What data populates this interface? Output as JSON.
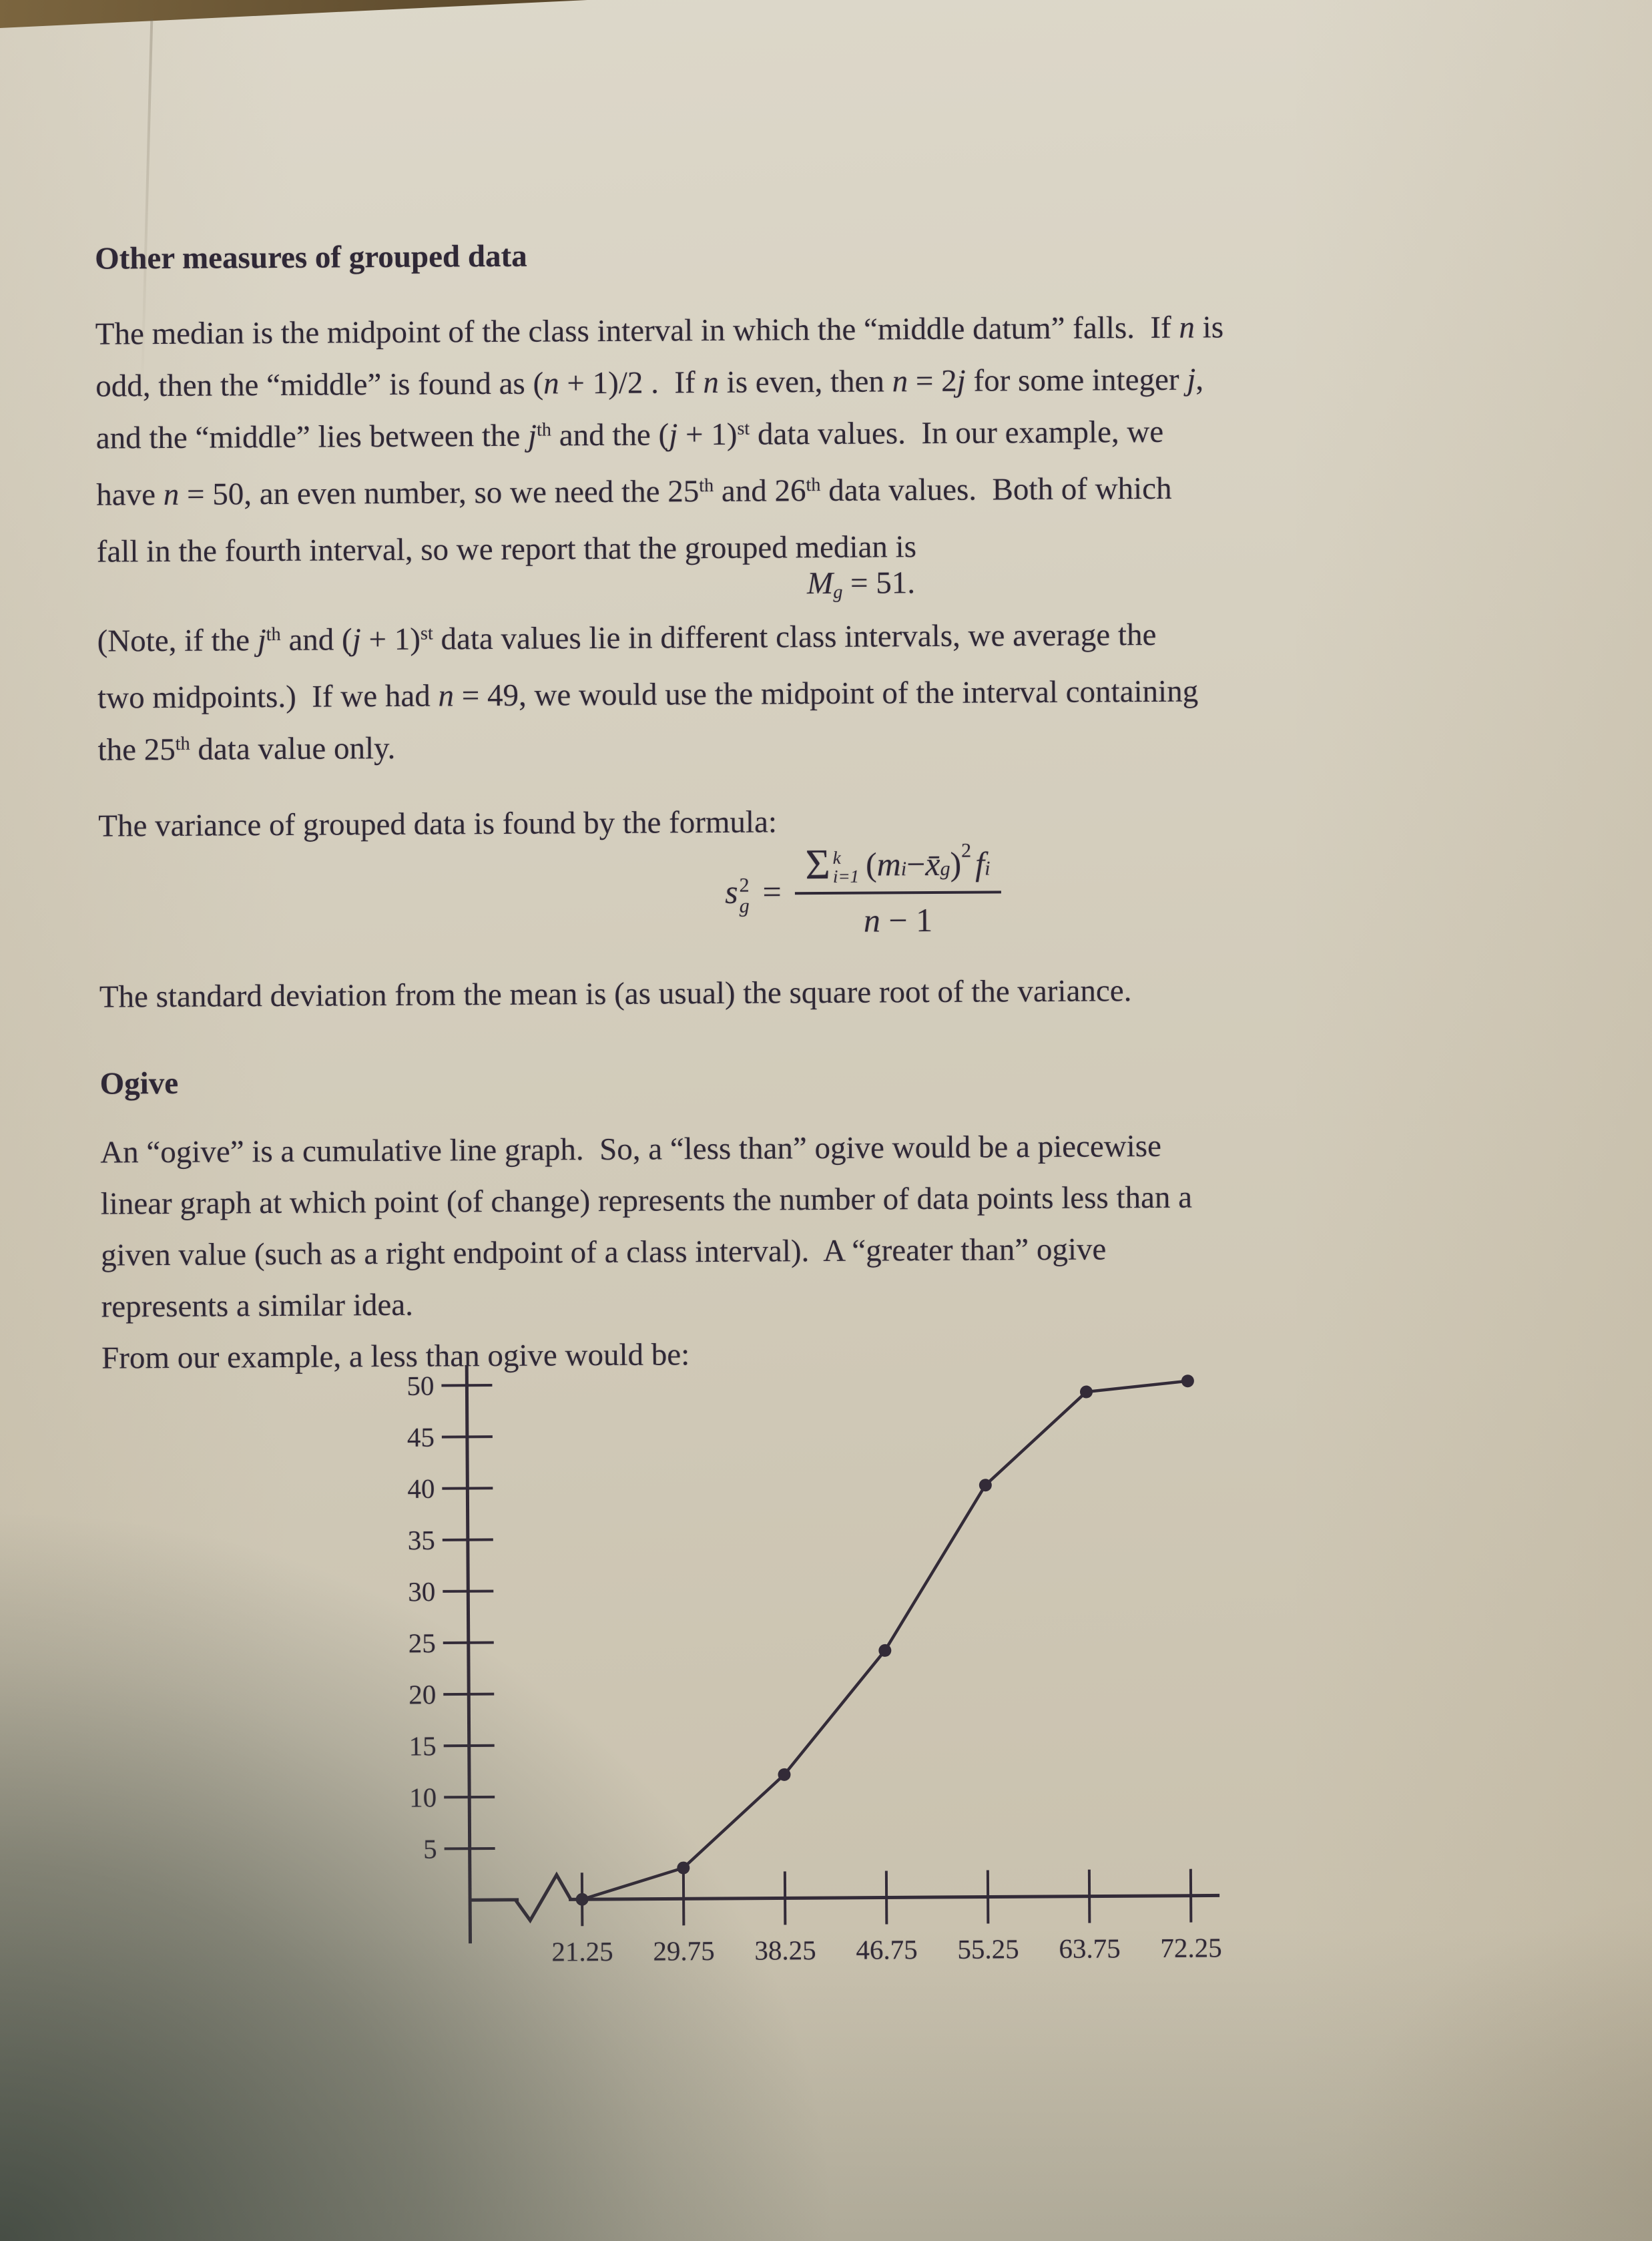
{
  "colors": {
    "paper": "#d5cfbf",
    "ink": "#2f2836",
    "wood": "#54422a",
    "shadow": "#5f665e"
  },
  "heading1": "Other measures of grouped data",
  "paragraph1": {
    "lines": [
      [
        [
          "",
          "The median is the midpoint of the class interval in which the “middle datum” falls.  If "
        ],
        [
          "i",
          "n"
        ],
        [
          "",
          " is"
        ]
      ],
      [
        [
          "",
          "odd, then the “middle” is found as ("
        ],
        [
          "i",
          "n"
        ],
        [
          "",
          " + 1)/2 .  If "
        ],
        [
          "i",
          "n"
        ],
        [
          "",
          " is even, then "
        ],
        [
          "i",
          "n"
        ],
        [
          "",
          " = 2"
        ],
        [
          "i",
          "j"
        ],
        [
          "",
          " for some integer "
        ],
        [
          "i",
          "j"
        ],
        [
          "",
          ","
        ]
      ],
      [
        [
          "",
          "and the “middle” lies between the "
        ],
        [
          "i",
          "j"
        ],
        [
          "sup",
          "th"
        ],
        [
          "",
          " and the ("
        ],
        [
          "i",
          "j"
        ],
        [
          "",
          " + 1)"
        ],
        [
          "sup",
          "st"
        ],
        [
          "",
          " data values.  In our example, we"
        ]
      ],
      [
        [
          "",
          "have "
        ],
        [
          "i",
          "n"
        ],
        [
          "",
          " = 50, an even number, so we need the 25"
        ],
        [
          "sup",
          "th"
        ],
        [
          "",
          " and 26"
        ],
        [
          "sup",
          "th"
        ],
        [
          "",
          " data values.  Both of which"
        ]
      ],
      [
        [
          "",
          "fall in the fourth interval, so we report that the grouped median is"
        ]
      ]
    ]
  },
  "median_result": [
    [
      "i",
      "M"
    ],
    [
      "isub",
      "g"
    ],
    [
      "",
      " = 51."
    ]
  ],
  "note": {
    "lines": [
      [
        [
          "",
          "(Note, if the "
        ],
        [
          "i",
          "j"
        ],
        [
          "sup",
          "th"
        ],
        [
          "",
          " and ("
        ],
        [
          "i",
          "j"
        ],
        [
          "",
          " + 1)"
        ],
        [
          "sup",
          "st"
        ],
        [
          "",
          " data values lie in different class intervals, we average the"
        ]
      ],
      [
        [
          "",
          "two midpoints.)  If we had "
        ],
        [
          "i",
          "n"
        ],
        [
          "",
          " = 49, we would use the midpoint of the interval containing"
        ]
      ],
      [
        [
          "",
          "the 25"
        ],
        [
          "sup",
          "th"
        ],
        [
          "",
          " data value only."
        ]
      ]
    ]
  },
  "variance": {
    "intro": "The variance of grouped data is found by the formula:",
    "outro": "The standard deviation from the mean is (as usual) the square root of the variance.",
    "formula": {
      "lhs": "s",
      "lhs_sup": "2",
      "lhs_sub": "g",
      "eq": "=",
      "sigma": "Σ",
      "sigma_sup": "k",
      "sigma_sub": "i=1",
      "open": "(",
      "m": "m",
      "m_sub": "i",
      "minus": " − ",
      "xbar": "x̄",
      "x_sub": "g",
      "close": ")",
      "sq": "2",
      "f": "f",
      "f_sub": "i",
      "den_n": "n",
      "den_rest": " − 1"
    }
  },
  "heading2": "Ogive",
  "ogive": {
    "lines": [
      [
        [
          "",
          "An “ogive” is a cumulative line graph.  So, a “less than” ogive would be a piecewise"
        ]
      ],
      [
        [
          "",
          "linear graph at which point (of change) represents the number of data points less than a"
        ]
      ],
      [
        [
          "",
          "given value (such as a right endpoint of a class interval).  A “greater than” ogive"
        ]
      ],
      [
        [
          "",
          "represents a similar idea."
        ]
      ],
      [
        [
          "",
          "From our example, a less than ogive would be:"
        ]
      ]
    ]
  },
  "chart_data": {
    "type": "line",
    "title": "",
    "xlabel": "",
    "ylabel": "",
    "x": [
      21.25,
      29.75,
      38.25,
      46.75,
      55.25,
      63.75,
      72.25
    ],
    "x_tick_labels": [
      "21.25",
      "29.75",
      "38.25",
      "46.75",
      "55.25",
      "63.75",
      "72.25"
    ],
    "values": [
      0,
      3,
      12,
      24,
      40,
      49,
      50
    ],
    "y_ticks": [
      5,
      10,
      15,
      20,
      25,
      30,
      35,
      40,
      45,
      50
    ],
    "ylim": [
      0,
      50
    ],
    "grid": false,
    "legend": null,
    "axis_break_before_first_tick": true,
    "marker": "filled-circle",
    "line_color": "#332b38"
  }
}
